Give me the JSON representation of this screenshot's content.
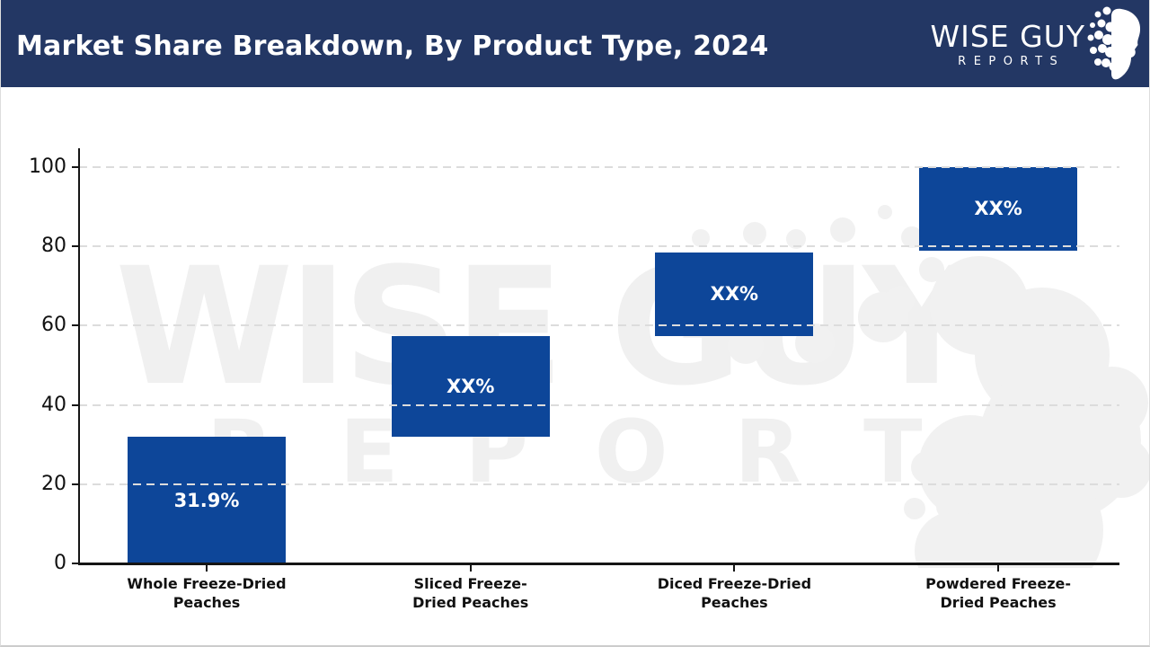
{
  "header": {
    "title": "Market Share Breakdown, By Product Type, 2024",
    "bg_color": "#233764",
    "logo": {
      "line1": "WISE GUY",
      "line2": "REPORTS",
      "head_icon": "dotted-head-profile"
    }
  },
  "watermark": {
    "line1": "WISE GUY",
    "line2": "REPORTS",
    "head_icon": "dotted-head-profile",
    "color": "#f0f0f0"
  },
  "chart_data": {
    "type": "bar",
    "subtype": "waterfall",
    "title": "Market Share Breakdown, By Product Type, 2024",
    "categories": [
      "Whole Freeze-Dried Peaches",
      "Sliced Freeze-Dried Peaches",
      "Diced Freeze-Dried Peaches",
      "Powdered Freeze-Dried Peaches"
    ],
    "category_lines": [
      [
        "Whole Freeze-Dried",
        "Peaches"
      ],
      [
        "Sliced Freeze-",
        "Dried Peaches"
      ],
      [
        "Diced Freeze-Dried",
        "Peaches"
      ],
      [
        "Powdered Freeze-",
        "Dried Peaches"
      ]
    ],
    "segments": [
      {
        "from": 0,
        "to": 31.9,
        "label": "31.9%"
      },
      {
        "from": 31.9,
        "to": 57.4,
        "label": "XX%"
      },
      {
        "from": 57.4,
        "to": 78.5,
        "label": "XX%"
      },
      {
        "from": 79.0,
        "to": 100,
        "label": "XX%"
      }
    ],
    "y_ticks": [
      0,
      20,
      40,
      60,
      80,
      100
    ],
    "ylim": [
      0,
      100
    ],
    "xlabel": "",
    "ylabel": "",
    "grid": true,
    "legend": false,
    "bar_color": "#0d4699",
    "value_label_color": "#ffffff",
    "axis_color": "#151515",
    "grid_color": "#dcdcdc"
  }
}
